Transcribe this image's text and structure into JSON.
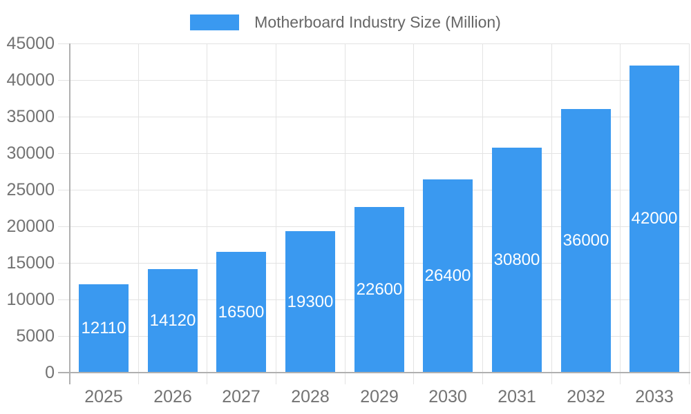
{
  "chart_data": {
    "type": "bar",
    "title": "Motherboard Industry Size (Million)",
    "legend": {
      "label": "Motherboard Industry Size (Million)",
      "position": "top"
    },
    "categories": [
      "2025",
      "2026",
      "2027",
      "2028",
      "2029",
      "2030",
      "2031",
      "2032",
      "2033"
    ],
    "series": [
      {
        "name": "Motherboard Industry Size (Million)",
        "values": [
          12110,
          14120,
          16500,
          19300,
          22600,
          26400,
          30800,
          36000,
          42000
        ]
      }
    ],
    "data_labels": [
      "12110",
      "14120",
      "16500",
      "19300",
      "22600",
      "26400",
      "30800",
      "36000",
      "42000"
    ],
    "xlabel": "",
    "ylabel": "",
    "ylim": [
      0,
      45000
    ],
    "ytick_step": 5000,
    "yticks": [
      0,
      5000,
      10000,
      15000,
      20000,
      25000,
      30000,
      35000,
      40000,
      45000
    ],
    "grid": true,
    "colors": {
      "bar": "#3A99F0",
      "gridline": "#e3e3e3",
      "axis_line": "#b0b0b0",
      "tick_label": "#737373",
      "legend_text": "#666666",
      "data_label": "#ffffff",
      "background": "#ffffff"
    }
  }
}
